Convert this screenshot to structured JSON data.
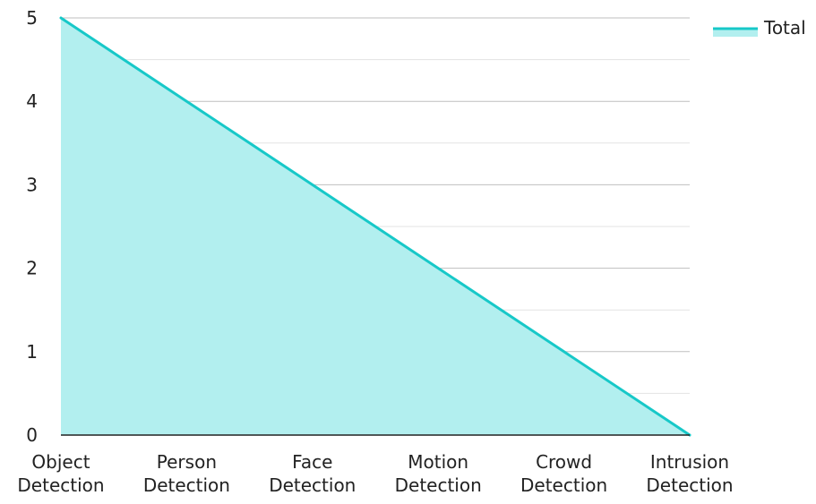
{
  "chart_data": {
    "type": "area",
    "categories": [
      [
        "Object",
        "Detection"
      ],
      [
        "Person",
        "Detection"
      ],
      [
        "Face",
        "Detection"
      ],
      [
        "Motion",
        "Detection"
      ],
      [
        "Crowd",
        "Detection"
      ],
      [
        "Intrusion",
        "Detection"
      ]
    ],
    "series": [
      {
        "name": "Total",
        "values": [
          5,
          4,
          3,
          2,
          1,
          0
        ]
      }
    ],
    "ylim": [
      0,
      5
    ],
    "yticks": [
      "0",
      "1",
      "2",
      "3",
      "4",
      "5"
    ],
    "grid": true,
    "legend_position": "top-right",
    "colors": {
      "line": "#17c8c8",
      "fill": "#b2efef",
      "grid_major": "#bfbfbf",
      "grid_minor": "#e3e3e3",
      "axis": "#222222"
    }
  }
}
